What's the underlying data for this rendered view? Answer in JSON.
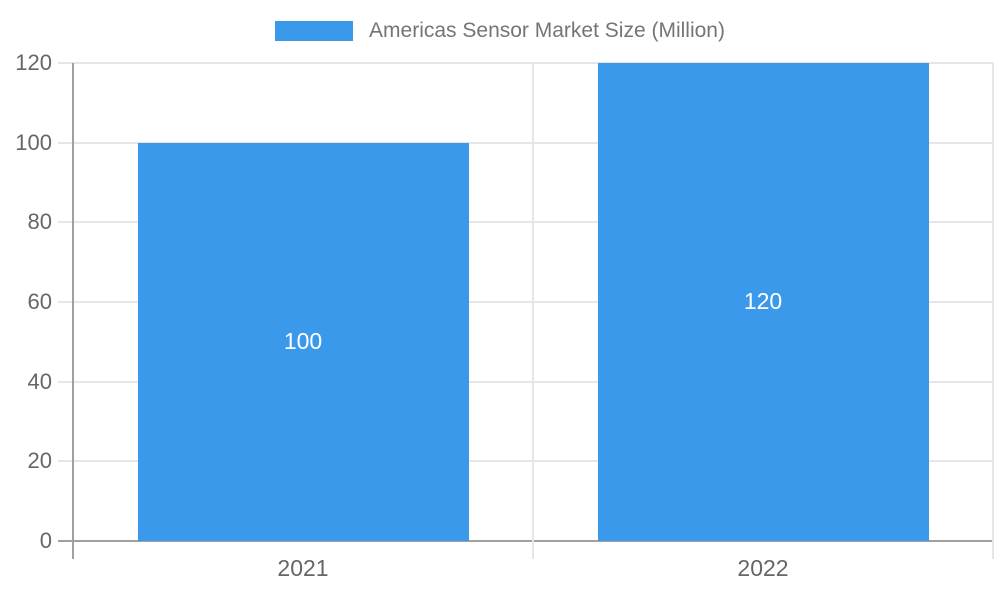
{
  "chart_data": {
    "type": "bar",
    "title": "Americas Sensor Market Size (Million)",
    "categories": [
      "2021",
      "2022"
    ],
    "series": [
      {
        "name": "Americas Sensor Market Size (Million)",
        "values": [
          100,
          120
        ]
      }
    ],
    "data_labels": [
      "100",
      "120"
    ],
    "xlabel": "",
    "ylabel": "",
    "ylim": [
      0,
      120
    ],
    "yticks": [
      0,
      20,
      40,
      60,
      80,
      100,
      120
    ],
    "grid": "horizontal-on",
    "legend_position": "top-center",
    "colors": {
      "bar": "#3B99EC",
      "axis_line": "#a0a0a0",
      "gridline": "#e6e6e6",
      "tick_label_text": "#666666",
      "legend_text": "#757575",
      "data_label_text": "#ffffff",
      "background": "#ffffff"
    }
  }
}
